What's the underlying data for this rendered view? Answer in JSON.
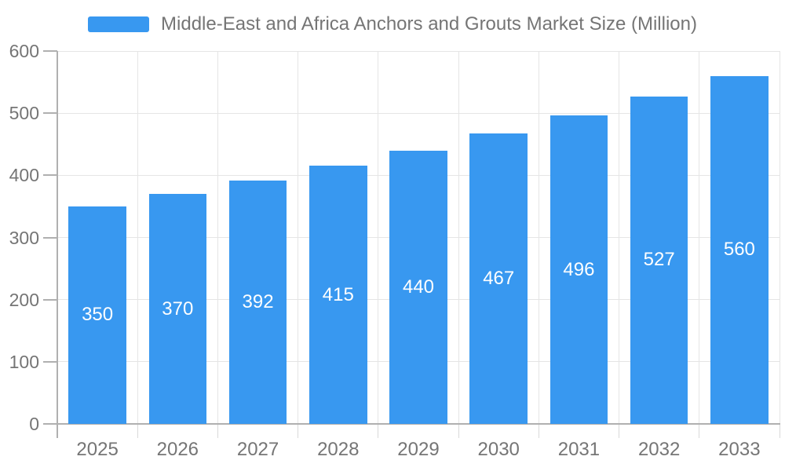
{
  "chart_data": {
    "type": "bar",
    "title": "Middle-East and Africa Anchors and Grouts Market Size (Million)",
    "legend_position": "top-center",
    "categories": [
      "2025",
      "2026",
      "2027",
      "2028",
      "2029",
      "2030",
      "2031",
      "2032",
      "2033"
    ],
    "values": [
      350,
      370,
      392,
      415,
      440,
      467,
      496,
      527,
      560
    ],
    "xlabel": "",
    "ylabel": "",
    "ylim": [
      0,
      600
    ],
    "ytick_interval": 100,
    "yticks": [
      0,
      100,
      200,
      300,
      400,
      500,
      600
    ],
    "ytick_labels": [
      "0",
      "100",
      "200",
      "300",
      "400",
      "500",
      "600"
    ],
    "grid": "on",
    "value_labels": "inside-center",
    "colors": {
      "bar": "#3898f0",
      "gridline": "#e5e5e5",
      "axis_line": "#b0b0b0",
      "boundary_tick": "#d9d9d9",
      "axis_text": "#757575",
      "legend_text": "#757575",
      "value_label_text": "#ffffff",
      "background": "#ffffff"
    }
  }
}
